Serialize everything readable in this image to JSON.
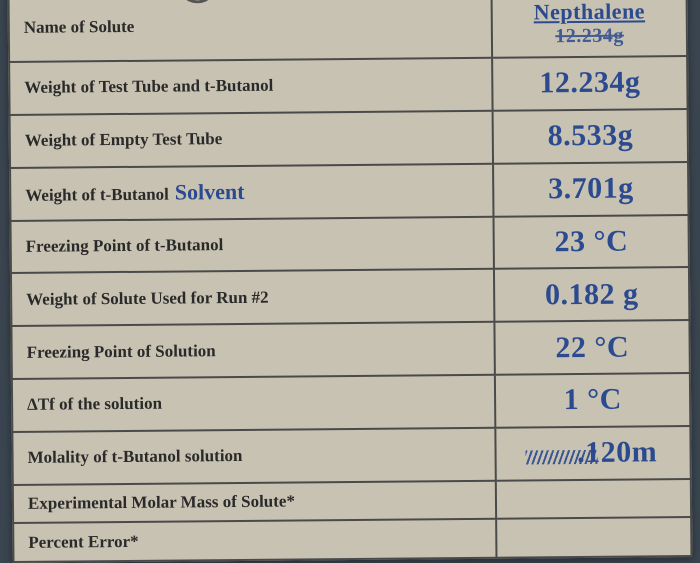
{
  "table": {
    "rows": [
      {
        "label": "Name of Solute",
        "label_suffix": "",
        "value": "Nepthalene",
        "value_note": "12.234g",
        "strike_note": true
      },
      {
        "label": "Weight of Test Tube and t-Butanol",
        "label_suffix": "",
        "value": "12.234g"
      },
      {
        "label": "Weight of Empty Test Tube",
        "label_suffix": "",
        "value": "8.533g"
      },
      {
        "label": "Weight of t-Butanol",
        "label_suffix": "Solvent",
        "value": "3.701g"
      },
      {
        "label": "Freezing Point of t-Butanol",
        "label_suffix": "",
        "value": "23 °C"
      },
      {
        "label": "Weight of Solute Used for Run #2",
        "label_suffix": "",
        "value": "0.182 g"
      },
      {
        "label": "Freezing Point of Solution",
        "label_suffix": "",
        "value": "22 °C"
      },
      {
        "label": "ΔTf of the solution",
        "label_suffix": "",
        "value": "1 °C"
      },
      {
        "label": "Molality of t-Butanol solution",
        "label_suffix": "",
        "value": ".120m",
        "scribble_prefix": true
      },
      {
        "label": "Experimental Molar Mass of Solute*",
        "label_suffix": "",
        "value": ""
      },
      {
        "label": "Percent Error*",
        "label_suffix": "",
        "value": ""
      }
    ]
  },
  "style": {
    "paper_color": "#c8c2b2",
    "border_color": "#4a4a4a",
    "print_color": "#2a2a2a",
    "hand_color": "#2b4a8f",
    "print_font": "Times New Roman",
    "hand_font": "Comic Sans MS",
    "label_fontsize": 17,
    "hand_fontsize": 30
  }
}
